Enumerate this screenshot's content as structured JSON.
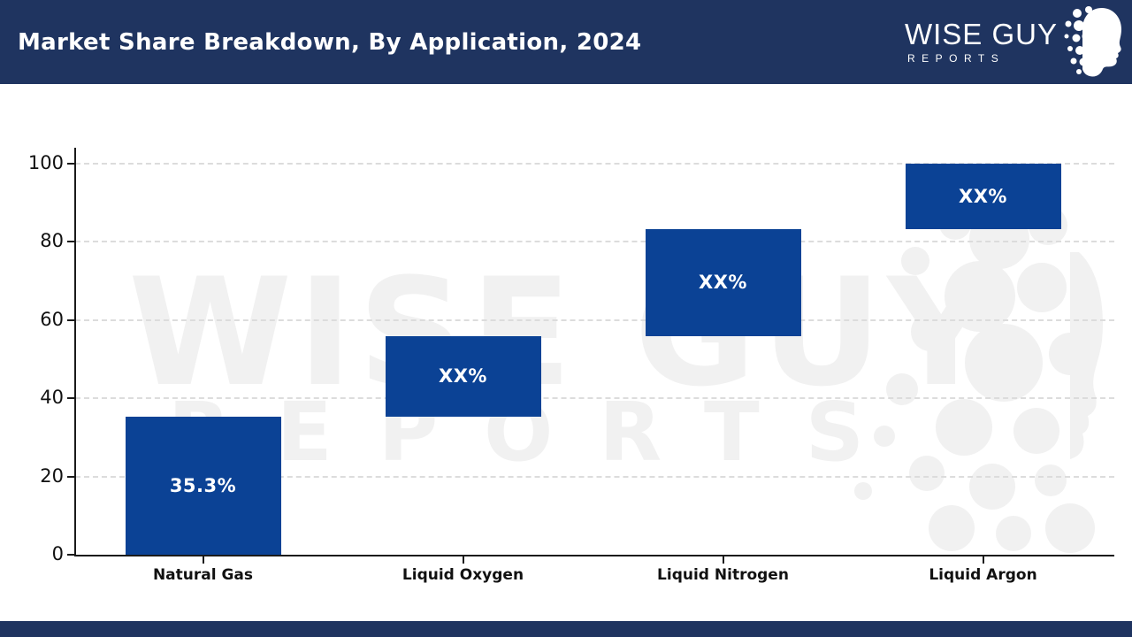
{
  "header": {
    "title": "Market Share Breakdown, By Application, 2024",
    "logo_line1": "WISE GUY",
    "logo_line2": "REPORTS"
  },
  "watermark": {
    "line1": "WISE GUY",
    "line2": "REPORTS"
  },
  "colors": {
    "header_bg": "#1f3460",
    "bar": "#0b4295",
    "axis": "#1a1a1a",
    "grid": "#dcdcdc",
    "tick_label": "#111111",
    "bar_label": "#ffffff",
    "watermark": "#f1f1f1"
  },
  "chart_data": {
    "type": "bar",
    "subtype": "waterfall",
    "title": "Market Share Breakdown, By Application, 2024",
    "categories": [
      "Natural Gas",
      "Liquid Oxygen",
      "Liquid Nitrogen",
      "Liquid Argon"
    ],
    "segments": [
      {
        "category": "Natural Gas",
        "start": 0,
        "end": 35.3,
        "label": "35.3%"
      },
      {
        "category": "Liquid Oxygen",
        "start": 35.3,
        "end": 55.8,
        "label": "XX%"
      },
      {
        "category": "Liquid Nitrogen",
        "start": 55.8,
        "end": 83.2,
        "label": "XX%"
      },
      {
        "category": "Liquid Argon",
        "start": 83.2,
        "end": 100,
        "label": "XX%"
      }
    ],
    "ylabel": "",
    "xlabel": "",
    "ylim": [
      0,
      104
    ],
    "yticks": [
      0,
      20,
      40,
      60,
      80,
      100
    ],
    "grid": "horizontal-dashed",
    "legend": "none",
    "bar_color": "#0b4295"
  }
}
